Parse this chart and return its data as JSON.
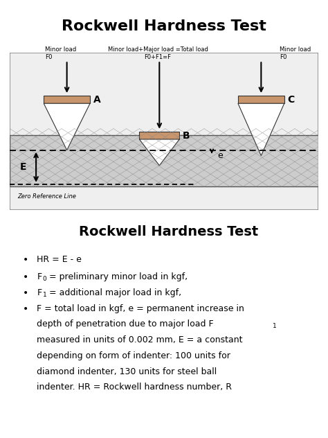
{
  "title_top": "Rockwell Hardness Test",
  "title_bottom": "Rockwell Hardness Test",
  "bg_color": "#ffffff",
  "diagram_box_color": "#eeeeee",
  "indenter_brown": "#c8956c",
  "slab_color": "#cccccc",
  "mesh_color": "#aaaaaa",
  "label_A": "A",
  "label_B": "B",
  "label_C": "C",
  "label_E": "E",
  "label_e": "e",
  "minor_load_left": "Minor load\nF0",
  "major_load_center": "Minor load+Major load =Total load\nF0+F1=F",
  "minor_load_right": "Minor load\nF0",
  "zero_ref_text": "Zero Reference Line",
  "bullet1": "HR = E - e",
  "bullet2_pre": "F",
  "bullet2_sub": "0",
  "bullet2_post": " = preliminary minor load in kgf,",
  "bullet3_pre": "F",
  "bullet3_sub": "1",
  "bullet3_post": " = additional major load in kgf,",
  "bullet4_line1": "F = total load in kgf, e = permanent increase in",
  "bullet4_line2": "depth of penetration due to major load F",
  "bullet4_line2_sub": "1",
  "bullet4_line3": "measured in units of 0.002 mm, E = a constant",
  "bullet4_line4": "depending on form of indenter: 100 units for",
  "bullet4_line5": "diamond indenter, 130 units for steel ball",
  "bullet4_line6": "indenter. HR = Rockwell hardness number, R"
}
